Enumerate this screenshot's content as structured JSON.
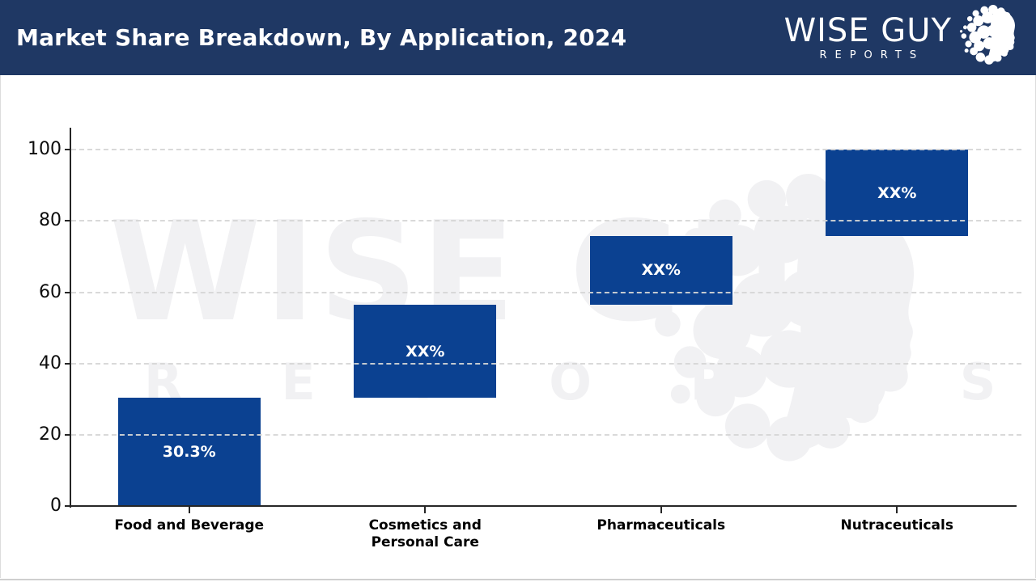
{
  "header": {
    "title": "Market Share Breakdown, By Application, 2024",
    "logo_line1": "WISE GUY",
    "logo_line2": "REPORTS"
  },
  "watermark": {
    "line1": "WISE GUY",
    "line2": "R E P O R T S"
  },
  "chart_data": {
    "type": "bar",
    "subtype": "floating-waterfall",
    "title": "Market Share Breakdown, By Application, 2024",
    "categories": [
      [
        "Food and Beverage"
      ],
      [
        "Cosmetics and",
        "Personal Care"
      ],
      [
        "Pharmaceuticals"
      ],
      [
        "Nutraceuticals"
      ]
    ],
    "segments": [
      {
        "category": "Food and Beverage",
        "start": 0,
        "end": 30.3,
        "label": "30.3%"
      },
      {
        "category": "Cosmetics and Personal Care",
        "start": 30.3,
        "end": 56.5,
        "label": "XX%"
      },
      {
        "category": "Pharmaceuticals",
        "start": 56.5,
        "end": 75.8,
        "label": "XX%"
      },
      {
        "category": "Nutraceuticals",
        "start": 75.8,
        "end": 100,
        "label": "XX%"
      }
    ],
    "yticks": [
      0,
      20,
      40,
      60,
      80,
      100
    ],
    "ylim": [
      0,
      106
    ],
    "xlabel": "",
    "ylabel": "",
    "grid": "horizontal-dashed-over-bars",
    "legend": "none"
  },
  "colors": {
    "header_bg": "#1f3864",
    "bar": "#0b4191",
    "bar_label": "#ffffff",
    "grid": "#d6d6d6",
    "axis": "#262626",
    "watermark": "#f1f1f3",
    "page_bg": "#ffffff"
  }
}
